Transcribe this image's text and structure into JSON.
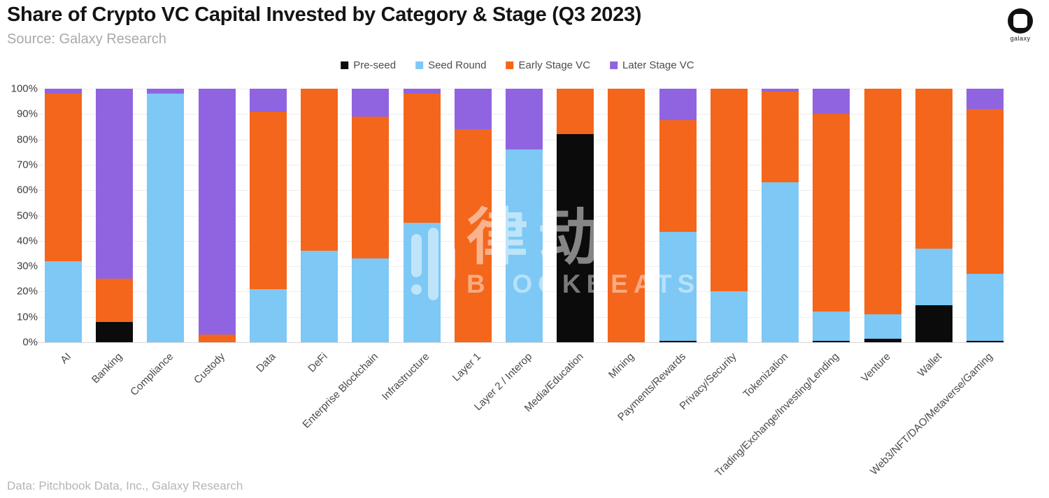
{
  "header": {
    "title": "Share of Crypto VC Capital Invested by Category & Stage (Q3 2023)",
    "source": "Source: Galaxy Research",
    "logo_text": "galaxy"
  },
  "watermark": {
    "cjk": "律动",
    "latin": "BLOCKBEATS"
  },
  "footer": {
    "credit": "Data: Pitchbook Data, Inc., Galaxy Research"
  },
  "chart_data": {
    "type": "bar",
    "stacked": true,
    "unit": "percent",
    "ylim": [
      0,
      100
    ],
    "y_ticks": [
      "100%",
      "90%",
      "80%",
      "70%",
      "60%",
      "50%",
      "40%",
      "30%",
      "20%",
      "10%",
      "0%"
    ],
    "grid": true,
    "legend_position": "top-center",
    "categories": [
      "AI",
      "Banking",
      "Compliance",
      "Custody",
      "Data",
      "DeFi",
      "Enterprise Blockchain",
      "Infrastructure",
      "Layer 1",
      "Layer 2 / Interop",
      "Media/Education",
      "Mining",
      "Payments/Rewards",
      "Privacy/Security",
      "Tokenization",
      "Trading/Exchange/Investing/Lending",
      "Venture",
      "Wallet",
      "Web3/NFT/DAO/Metaverse/Gaming"
    ],
    "series": [
      {
        "name": "Pre-seed",
        "color": "#0b0b0b",
        "values": [
          0,
          8,
          0,
          0,
          0,
          0,
          0,
          0,
          0,
          0,
          82,
          0,
          0.5,
          0,
          0,
          0.5,
          1.5,
          14.5,
          0.5
        ]
      },
      {
        "name": "Seed Round",
        "color": "#7dc8f5",
        "values": [
          32,
          0,
          98,
          0,
          21,
          36,
          33,
          47,
          0,
          76,
          0,
          0,
          43,
          20,
          63,
          11.5,
          9.5,
          22.5,
          26.5
        ]
      },
      {
        "name": "Early Stage VC",
        "color": "#f4661b",
        "values": [
          66,
          17,
          0,
          3,
          70,
          64,
          56,
          51,
          84,
          0,
          18,
          100,
          44,
          80,
          36,
          78,
          89,
          63,
          65
        ]
      },
      {
        "name": "Later Stage VC",
        "color": "#9064e0",
        "values": [
          2,
          75,
          2,
          97,
          9,
          0,
          11,
          2,
          16,
          24,
          0,
          0,
          12.5,
          0,
          1,
          10,
          0,
          0,
          8
        ]
      }
    ]
  }
}
